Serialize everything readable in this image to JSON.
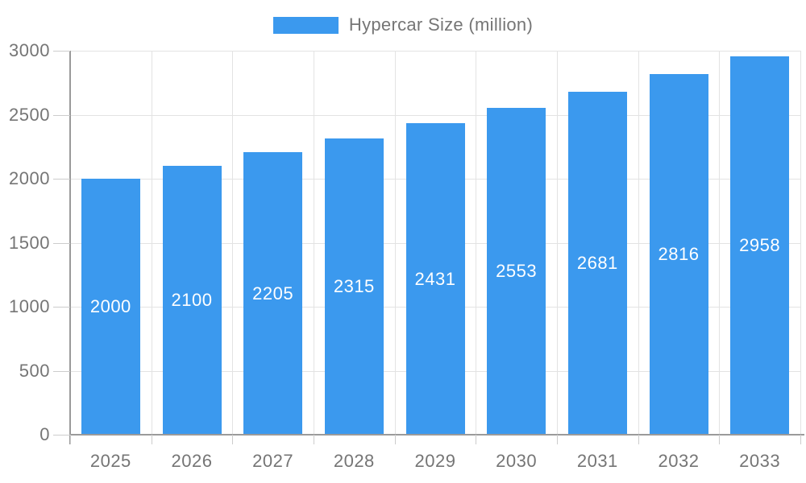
{
  "legend": {
    "label": "Hypercar Size (million)"
  },
  "colors": {
    "bar": "#3B99EE",
    "grid": "#E3E3E3",
    "axis_line": "#9A9A9A",
    "tick": "#CCCCCC",
    "axis_text": "#757575",
    "value_label_text": "#FFFFFF",
    "background": "#FFFFFF"
  },
  "chart_data": {
    "type": "bar",
    "title": "",
    "xlabel": "",
    "ylabel": "",
    "categories": [
      "2025",
      "2026",
      "2027",
      "2028",
      "2029",
      "2030",
      "2031",
      "2032",
      "2033"
    ],
    "series": [
      {
        "name": "Hypercar Size (million)",
        "values": [
          2000,
          2100,
          2205,
          2315,
          2431,
          2553,
          2681,
          2816,
          2958
        ]
      }
    ],
    "ylim": [
      0,
      3000
    ],
    "yticks": [
      0,
      500,
      1000,
      1500,
      2000,
      2500,
      3000
    ],
    "grid": true,
    "legend_position": "top-center",
    "value_labels": "inside-center-white"
  }
}
